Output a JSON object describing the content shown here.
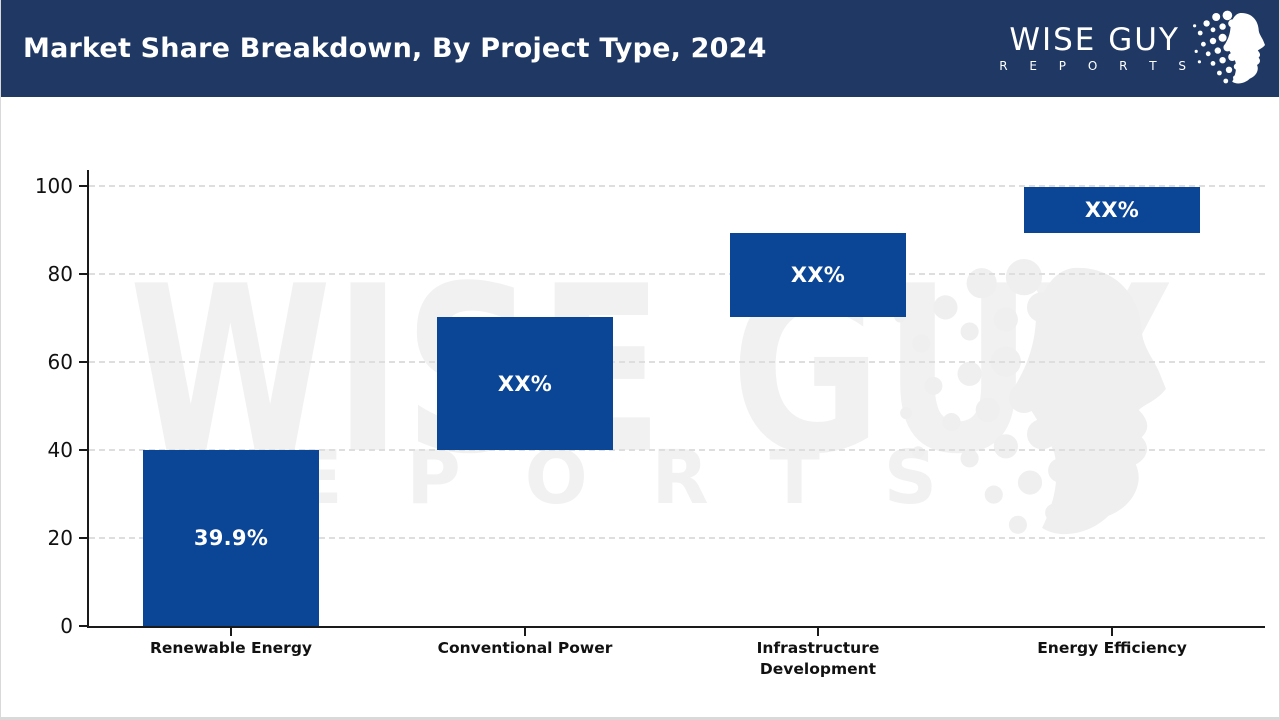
{
  "header": {
    "title": "Market Share Breakdown, By Project Type, 2024",
    "background_color": "#1f3864",
    "brand": {
      "line1": "WISE GUY",
      "line2": "R E P O R T S"
    }
  },
  "watermark": {
    "line1": "WISE GUY",
    "line2": "REPORTS"
  },
  "chart_data": {
    "type": "bar",
    "subtype": "waterfall",
    "title": "Market Share Breakdown, By Project Type, 2024",
    "categories": [
      "Renewable Energy",
      "Conventional Power",
      "Infrastructure Development",
      "Energy Efficiency"
    ],
    "segments": [
      {
        "category": "Renewable Energy",
        "start": 0,
        "end": 39.9,
        "label": "39.9%"
      },
      {
        "category": "Conventional Power",
        "start": 39.9,
        "end": 70.1,
        "label": "XX%"
      },
      {
        "category": "Infrastructure Development",
        "start": 70.1,
        "end": 89.2,
        "label": "XX%"
      },
      {
        "category": "Energy Efficiency",
        "start": 89.2,
        "end": 99.8,
        "label": "XX%"
      }
    ],
    "y_ticks": [
      0,
      20,
      40,
      60,
      80,
      100
    ],
    "ylim": [
      0,
      103.6
    ],
    "xlabel": "",
    "ylabel": "",
    "grid": "horizontal-dashed",
    "legend": "none",
    "bar_color": "#0b4596",
    "bar_label_color": "#ffffff",
    "axis_color": "#1a1a1a",
    "gridline_color": "#dedede"
  }
}
